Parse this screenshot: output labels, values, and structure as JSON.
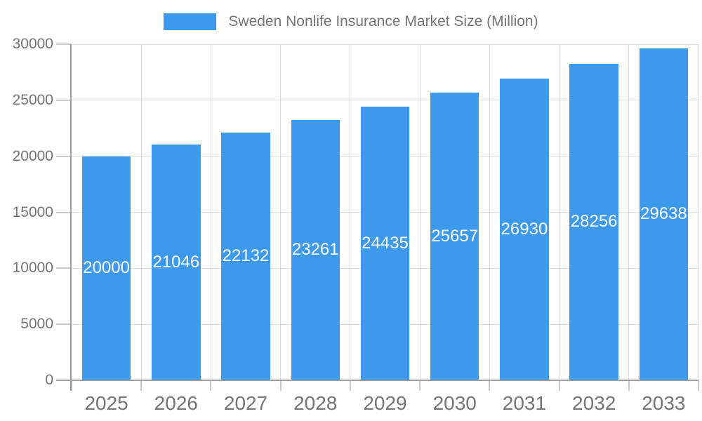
{
  "chart_data": {
    "type": "bar",
    "title": "Sweden Nonlife Insurance Market Size (Million)",
    "legend": {
      "position": "top",
      "entries": [
        "Sweden Nonlife Insurance Market Size (Million)"
      ]
    },
    "categories": [
      "2025",
      "2026",
      "2027",
      "2028",
      "2029",
      "2030",
      "2031",
      "2032",
      "2033"
    ],
    "values": [
      20000,
      21046,
      22132,
      23261,
      24435,
      25657,
      26930,
      28256,
      29638
    ],
    "series": [
      {
        "name": "Sweden Nonlife Insurance Market Size (Million)",
        "values": [
          20000,
          21046,
          22132,
          23261,
          24435,
          25657,
          26930,
          28256,
          29638
        ]
      }
    ],
    "xlabel": "",
    "ylabel": "",
    "ylim": [
      0,
      30000
    ],
    "y_ticks": [
      0,
      5000,
      10000,
      15000,
      20000,
      25000,
      30000
    ],
    "grid": "horizontal-and-vertical",
    "bar_label_position": "inside-middle",
    "colors": {
      "bar": "#3C99EC",
      "value_label": "#FFFFFF",
      "text": "#757575",
      "axis": "#9E9E9E",
      "grid": "#E0E0E0",
      "tick": "#C9C9C9",
      "background": "#FFFFFF"
    }
  }
}
